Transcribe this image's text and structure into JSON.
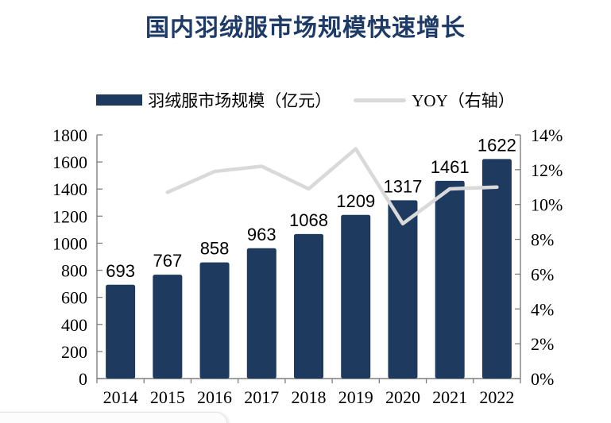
{
  "title": {
    "text": "国内羽绒服市场规模快速增长",
    "color": "#1e3a66"
  },
  "legend": [
    {
      "label": "羽绒服市场规模（亿元）",
      "swatch": "bar",
      "color": "#1f3a5f"
    },
    {
      "label": "YOY（右轴）",
      "swatch": "line",
      "color": "#d9d9d9"
    }
  ],
  "chart_data": {
    "type": "bar+line",
    "title": "国内羽绒服市场规模快速增长",
    "categories": [
      "2014",
      "2015",
      "2016",
      "2017",
      "2018",
      "2019",
      "2020",
      "2021",
      "2022"
    ],
    "series": [
      {
        "name": "羽绒服市场规模（亿元）",
        "type": "bar",
        "axis": "left",
        "color": "#1f3a5f",
        "values": [
          693,
          767,
          858,
          963,
          1068,
          1209,
          1317,
          1461,
          1622
        ]
      },
      {
        "name": "YOY（右轴）",
        "type": "line",
        "axis": "right",
        "color": "#d9d9d9",
        "unit": "%",
        "values": [
          null,
          10.7,
          11.9,
          12.2,
          10.9,
          13.2,
          8.9,
          10.9,
          11.0
        ]
      }
    ],
    "left_axis": {
      "min": 0,
      "max": 1800,
      "step": 200,
      "tick_labels": [
        "0",
        "200",
        "400",
        "600",
        "800",
        "1000",
        "1200",
        "1400",
        "1600",
        "1800"
      ]
    },
    "right_axis": {
      "min": 0,
      "max": 14,
      "step": 2,
      "unit": "%",
      "tick_labels": [
        "0%",
        "2%",
        "4%",
        "6%",
        "8%",
        "10%",
        "12%",
        "14%"
      ]
    },
    "grid": false,
    "legend_position": "top",
    "data_labels": true
  },
  "colors": {
    "bar": "#1f3a5f",
    "line": "#d9d9d9",
    "title": "#1e3a66",
    "axis": "#7f7f7f",
    "text": "#000000",
    "background": "#ffffff"
  }
}
